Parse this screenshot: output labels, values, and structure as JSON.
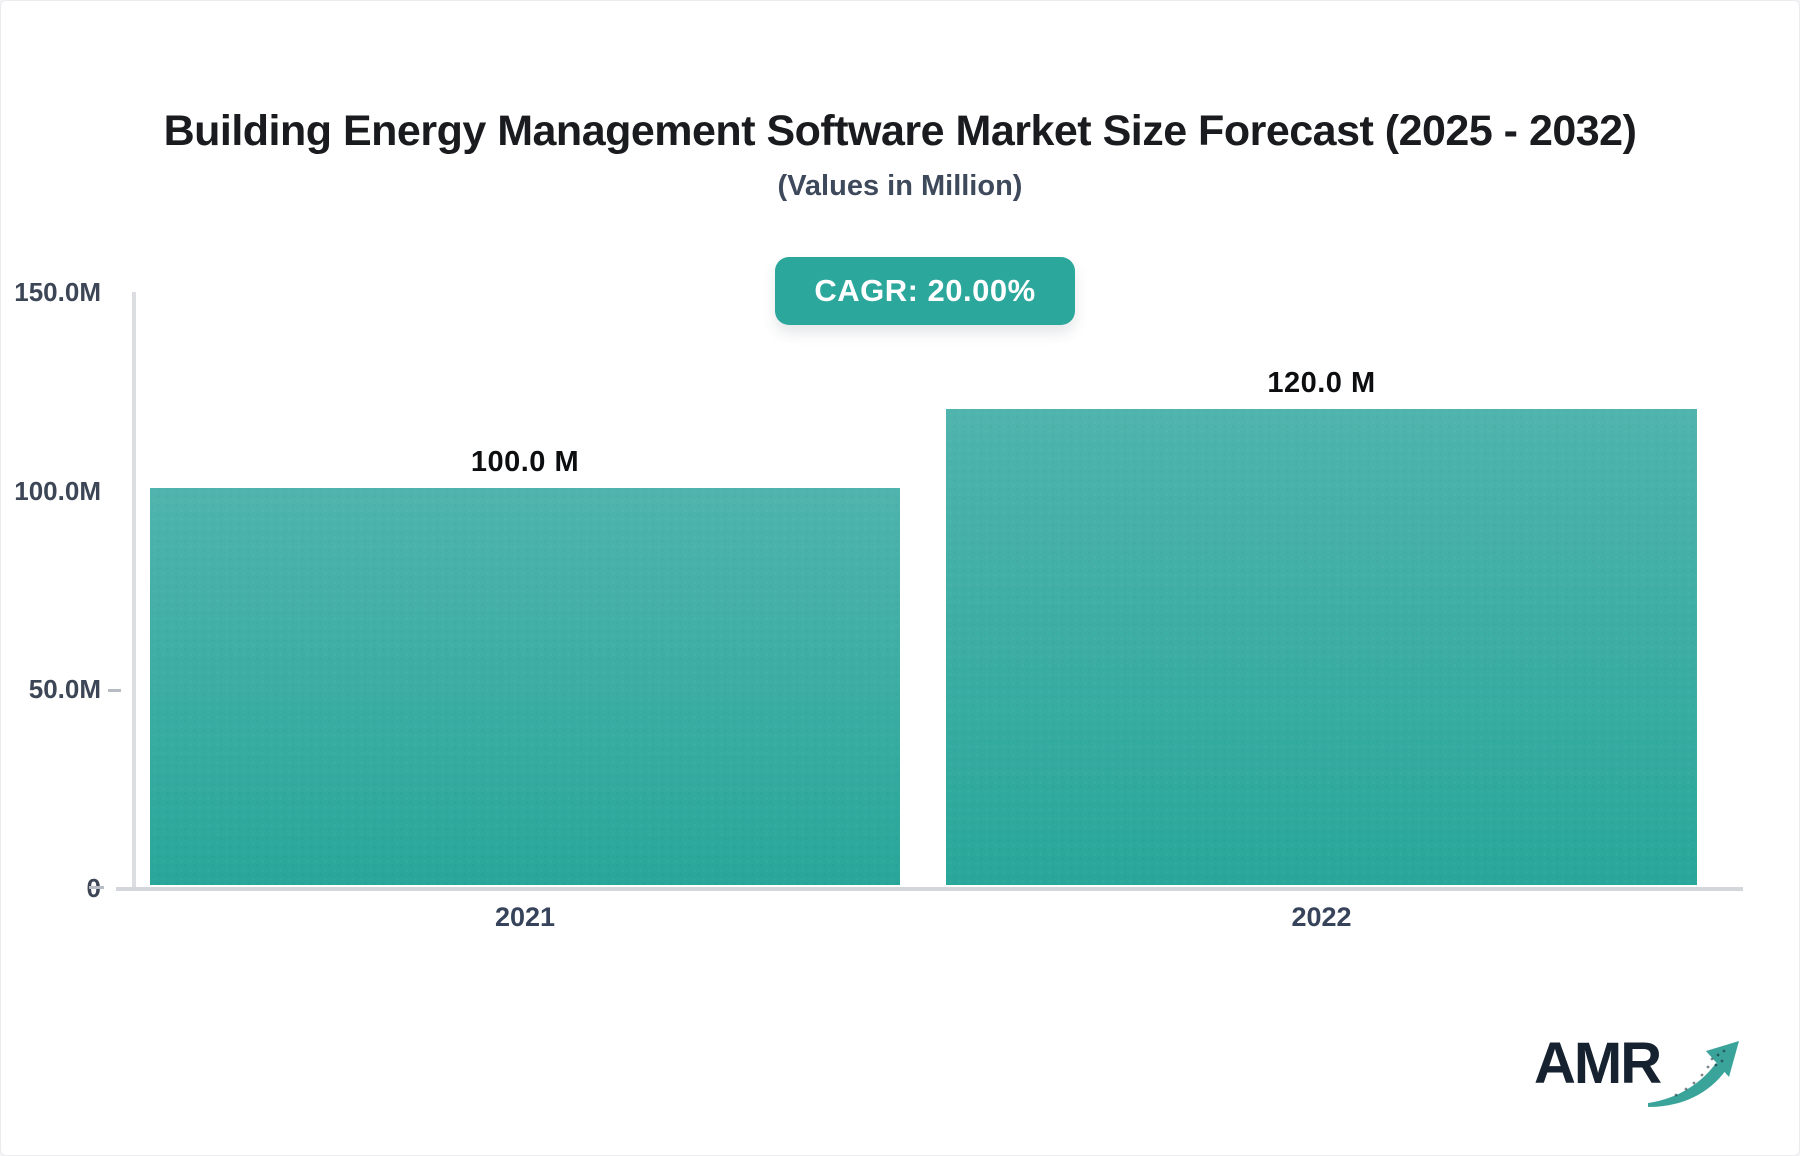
{
  "header": {
    "title": "Building Energy Management Software Market Size Forecast (2025 - 2032)",
    "subtitle": "(Values in Million)"
  },
  "badge": {
    "label": "CAGR: 20.00%",
    "color": "#2BA79C"
  },
  "chart_data": {
    "type": "bar",
    "title": "Building Energy Management Software Market Size Forecast (2025 - 2032)",
    "subtitle": "(Values in Million)",
    "cagr_label": "CAGR: 20.00%",
    "categories": [
      "2021",
      "2022"
    ],
    "values": [
      100.0,
      120.0
    ],
    "value_labels": [
      "100.0 M",
      "120.0 M"
    ],
    "unit": "Million",
    "ylim": [
      0,
      150
    ],
    "ytick_labels": [
      "150.0M",
      "100.0M",
      "50.0M",
      "0"
    ],
    "ytick_values": [
      150,
      100,
      50,
      0
    ],
    "grid": false,
    "legend": "none",
    "bar_color_top": "#4FB4AD",
    "bar_color_bottom": "#29A79A",
    "axis_color": "#d3d6db"
  },
  "logo": {
    "text": "AMR",
    "navy": "#16222f",
    "teal": "#3AA49B"
  }
}
